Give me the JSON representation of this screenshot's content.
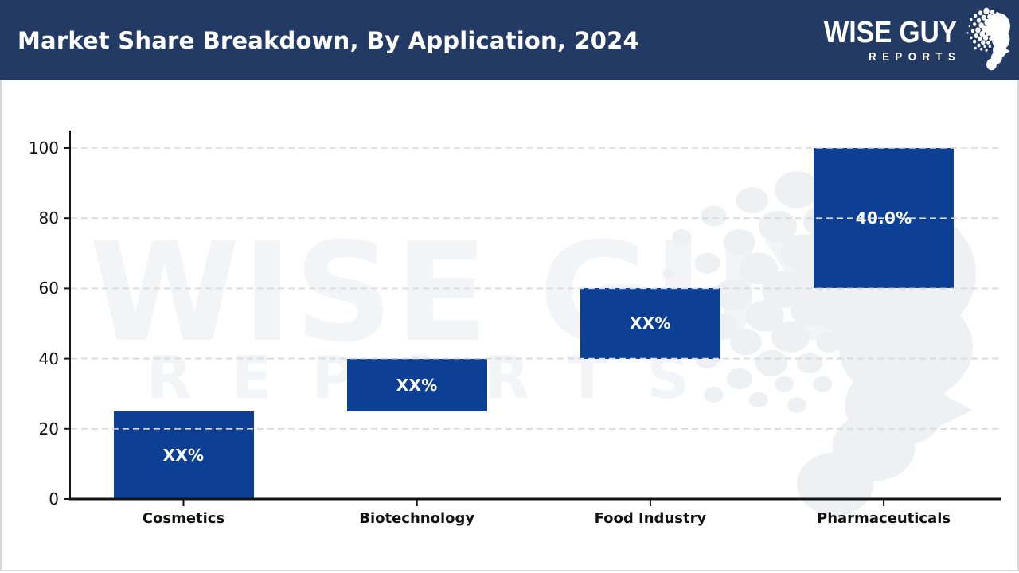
{
  "header": {
    "title": "Market Share Breakdown, By Application, 2024",
    "logo": {
      "primary": "WISE GUY",
      "secondary": "REPORTS"
    }
  },
  "watermark": {
    "primary": "WISE GUY",
    "secondary": "REPORTS"
  },
  "colors": {
    "header_bg": "#223a64",
    "bar": "#0d4094",
    "grid": "#d8d8d8",
    "axis": "#141414",
    "tick_label": "#111111",
    "bar_label": "#ffffff",
    "watermark_text": "#f3f4f7",
    "watermark_head": "#eef0f3"
  },
  "chart_data": {
    "type": "bar",
    "subtype": "floating-waterfall",
    "title": "Market Share Breakdown, By Application, 2024",
    "categories": [
      "Cosmetics",
      "Biotechnology",
      "Food Industry",
      "Pharmaceuticals"
    ],
    "series": [
      {
        "name": "Market Share",
        "segments": [
          {
            "category": "Cosmetics",
            "start": 0,
            "end": 25,
            "label": "XX%"
          },
          {
            "category": "Biotechnology",
            "start": 25,
            "end": 40,
            "label": "XX%"
          },
          {
            "category": "Food Industry",
            "start": 40,
            "end": 60,
            "label": "XX%"
          },
          {
            "category": "Pharmaceuticals",
            "start": 60,
            "end": 100,
            "label": "40.0%"
          }
        ]
      }
    ],
    "yticks": [
      0,
      20,
      40,
      60,
      80,
      100
    ],
    "ylim": [
      0,
      105
    ],
    "xlabel": "",
    "ylabel": "",
    "grid": "horizontal-dashed",
    "legend": "none"
  }
}
